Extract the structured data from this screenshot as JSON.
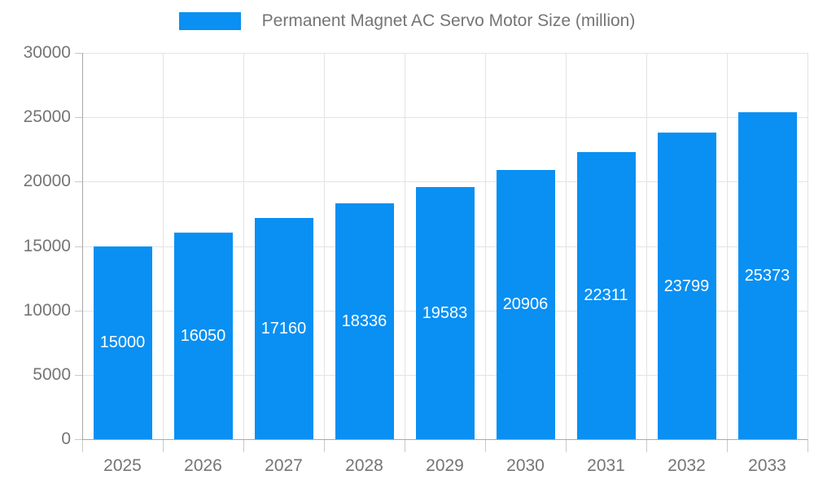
{
  "legend": {
    "label": "Permanent Magnet AC Servo Motor Size (million)",
    "swatch_color": "#0990f2"
  },
  "chart_data": {
    "type": "bar",
    "title": "Permanent Magnet AC Servo Motor Size (million)",
    "categories": [
      "2025",
      "2026",
      "2027",
      "2028",
      "2029",
      "2030",
      "2031",
      "2032",
      "2033"
    ],
    "series": [
      {
        "name": "Permanent Magnet AC Servo Motor Size (million)",
        "values": [
          15000,
          16050,
          17160,
          18336,
          19583,
          20906,
          22311,
          23799,
          25373
        ]
      }
    ],
    "xlabel": "",
    "ylabel": "",
    "ylim": [
      0,
      30000
    ],
    "yticks": [
      0,
      5000,
      10000,
      15000,
      20000,
      25000,
      30000
    ],
    "grid": true,
    "legend_position": "top",
    "value_labels": "inside-center"
  },
  "colors": {
    "bar": "#0990f2",
    "bar_value_text": "#ffffff",
    "axis_text": "#757575",
    "gridline": "#e3e3e3",
    "axis_line": "#a8a8a8",
    "tick_line": "#c9c9c9",
    "background": "#ffffff"
  }
}
